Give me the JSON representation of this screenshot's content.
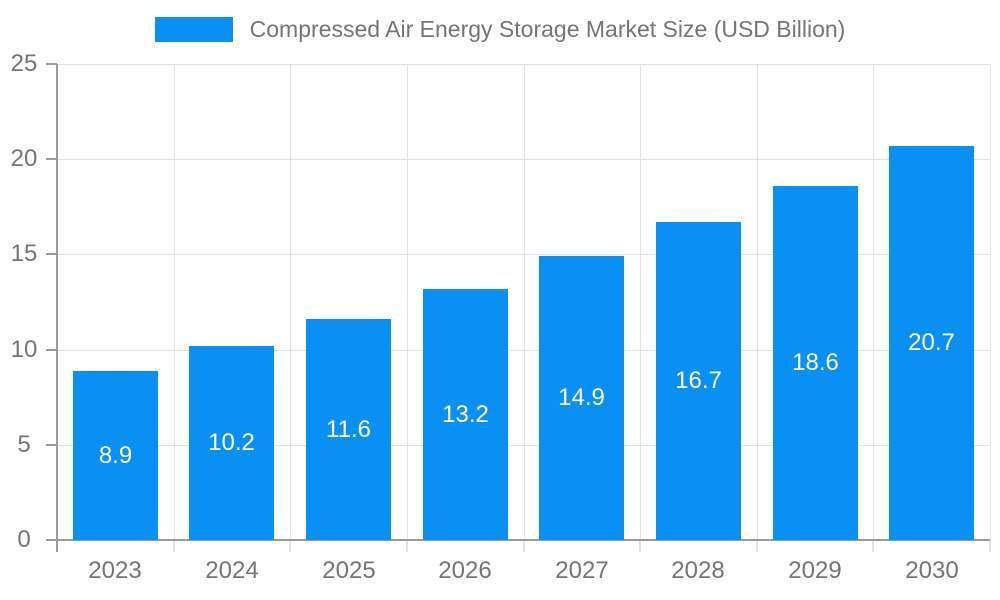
{
  "legend": {
    "swatch_color": "#0990f2"
  },
  "chart_data": {
    "type": "bar",
    "title": "Compressed Air Energy Storage Market Size (USD Billion)",
    "categories": [
      "2023",
      "2024",
      "2025",
      "2026",
      "2027",
      "2028",
      "2029",
      "2030"
    ],
    "values": [
      8.9,
      10.2,
      11.6,
      13.2,
      14.9,
      16.7,
      18.6,
      20.7
    ],
    "value_labels": [
      "8.9",
      "10.2",
      "11.6",
      "13.2",
      "14.9",
      "16.7",
      "18.6",
      "20.7"
    ],
    "xlabel": "",
    "ylabel": "",
    "ylim": [
      0,
      25
    ],
    "yticks": [
      0,
      5,
      10,
      15,
      20,
      25
    ],
    "grid": true,
    "legend_position": "top-center",
    "bar_color": "#0990f2",
    "value_label_color": "#ffffff",
    "axis_color": "#9b9b9b",
    "grid_color": "#e3e3e3",
    "tick_label_color": "#757575"
  }
}
